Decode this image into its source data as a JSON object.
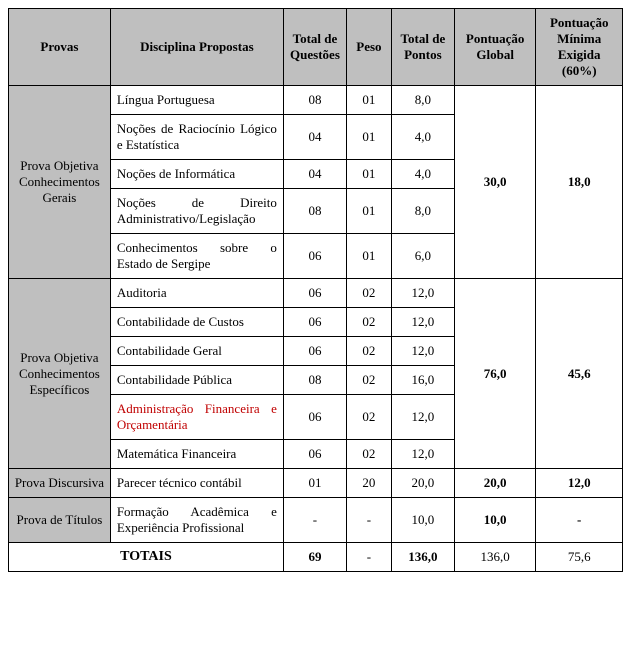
{
  "headers": {
    "provas": "Provas",
    "disciplina": "Disciplina Propostas",
    "total_questoes": "Total de Questões",
    "peso": "Peso",
    "total_pontos": "Total de Pontos",
    "pontuacao_global": "Pontuação Global",
    "pontuacao_minima": "Pontuação Mínima Exigida (60%)"
  },
  "groups": [
    {
      "label": "Prova Objetiva Conhecimentos Gerais",
      "global": "30,0",
      "minimo": "18,0",
      "rows": [
        {
          "disc": "Língua Portuguesa",
          "tq": "08",
          "peso": "01",
          "tp": "8,0",
          "red": false
        },
        {
          "disc": "Noções de Raciocínio Lógico e Estatística",
          "tq": "04",
          "peso": "01",
          "tp": "4,0",
          "red": false
        },
        {
          "disc": "Noções de Informática",
          "tq": "04",
          "peso": "01",
          "tp": "4,0",
          "red": false
        },
        {
          "disc": "Noções de Direito Administrativo/Legislação",
          "tq": "08",
          "peso": "01",
          "tp": "8,0",
          "red": false
        },
        {
          "disc": "Conhecimentos sobre o Estado de Sergipe",
          "tq": "06",
          "peso": "01",
          "tp": "6,0",
          "red": false
        }
      ]
    },
    {
      "label": "Prova Objetiva Conhecimentos Específicos",
      "global": "76,0",
      "minimo": "45,6",
      "rows": [
        {
          "disc": "Auditoria",
          "tq": "06",
          "peso": "02",
          "tp": "12,0",
          "red": false
        },
        {
          "disc": "Contabilidade de Custos",
          "tq": "06",
          "peso": "02",
          "tp": "12,0",
          "red": false
        },
        {
          "disc": "Contabilidade Geral",
          "tq": "06",
          "peso": "02",
          "tp": "12,0",
          "red": false
        },
        {
          "disc": "Contabilidade Pública",
          "tq": "08",
          "peso": "02",
          "tp": "16,0",
          "red": false
        },
        {
          "disc": "Administração Financeira e Orçamentária",
          "tq": "06",
          "peso": "02",
          "tp": "12,0",
          "red": true
        },
        {
          "disc": "Matemática Financeira",
          "tq": "06",
          "peso": "02",
          "tp": "12,0",
          "red": false
        }
      ]
    },
    {
      "label": "Prova Discursiva",
      "global": "20,0",
      "minimo": "12,0",
      "rows": [
        {
          "disc": "Parecer técnico contábil",
          "tq": "01",
          "peso": "20",
          "tp": "20,0",
          "red": false
        }
      ]
    },
    {
      "label": "Prova de Títulos",
      "global": "10,0",
      "minimo": "-",
      "rows": [
        {
          "disc": "Formação Acadêmica e Experiência Profissional",
          "tq": "-",
          "peso": "-",
          "tp": "10,0",
          "red": false
        }
      ]
    }
  ],
  "totals": {
    "label": "TOTAIS",
    "tq": "69",
    "peso": "-",
    "tp": "136,0",
    "global": "136,0",
    "minimo": "75,6"
  },
  "style": {
    "header_bg": "#bfbfbf",
    "red_color": "#c00000",
    "border_color": "#000000",
    "font_family": "Times New Roman"
  }
}
